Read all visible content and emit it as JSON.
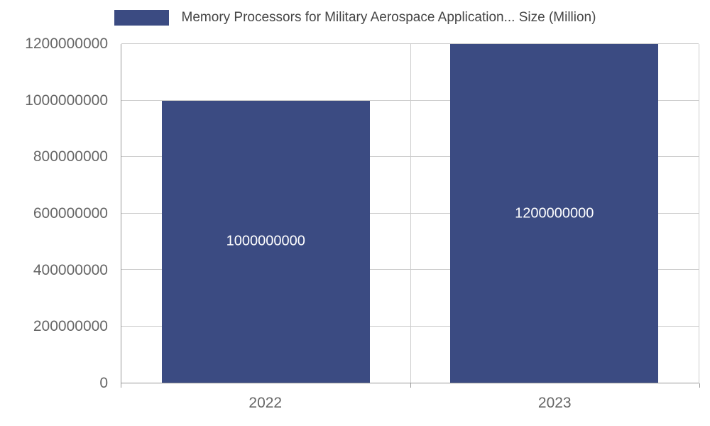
{
  "chart_data": {
    "type": "bar",
    "title": "Memory Processors for Military Aerospace Application... Size (Million)",
    "categories": [
      "2022",
      "2023"
    ],
    "values": [
      1000000000,
      1200000000
    ],
    "value_labels": [
      "1000000000",
      "1200000000"
    ],
    "xlabel": "",
    "ylabel": "",
    "ylim": [
      0,
      1200000000
    ],
    "ytick_step": 200000000,
    "yticks": [
      "0",
      "200000000",
      "400000000",
      "600000000",
      "800000000",
      "1000000000",
      "1200000000"
    ],
    "grid": true,
    "legend_position": "top",
    "bar_color": "#3b4b82",
    "bar_label_color": "#ffffff",
    "tick_label_color": "#666666",
    "title_color": "#454545"
  }
}
